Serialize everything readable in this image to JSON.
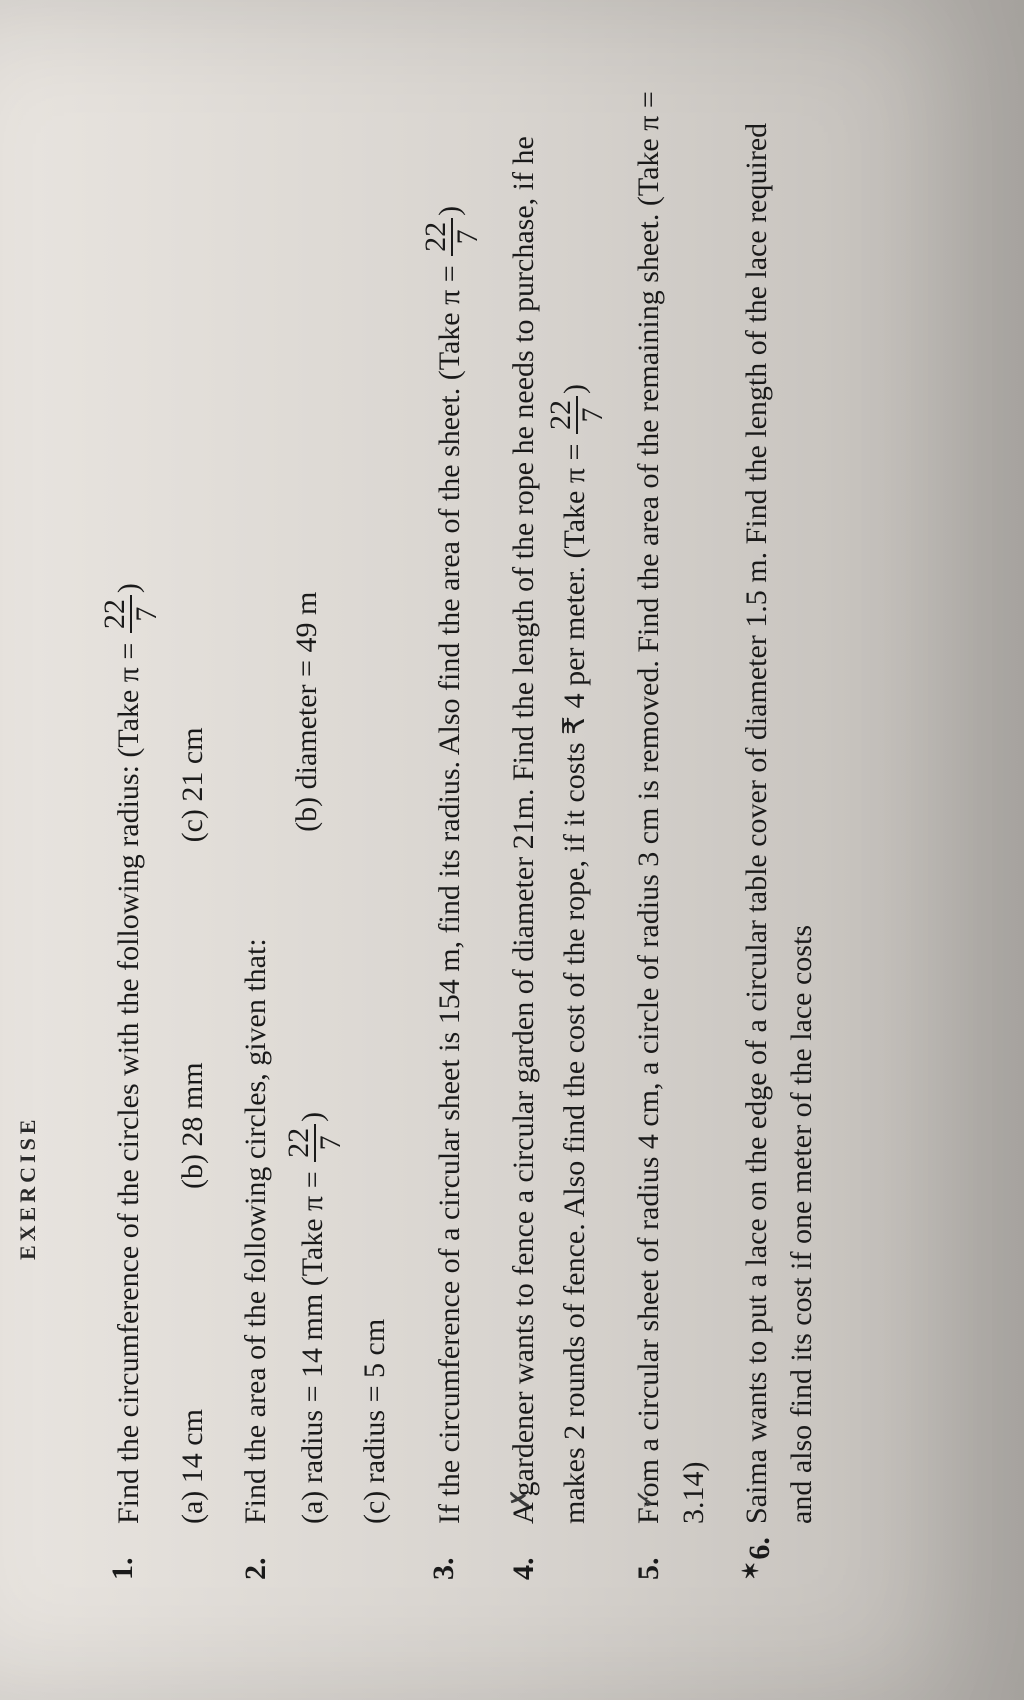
{
  "header": {
    "label": "EXERCISE"
  },
  "pi_fraction": {
    "num": "22",
    "den": "7"
  },
  "questions": [
    {
      "num": "1.",
      "text_before": "Find the circumference of the circles with the following radius: (Take π = ",
      "text_after": ")",
      "has_pi": true,
      "options_inline": [
        {
          "label": "(a)",
          "value": "14 cm"
        },
        {
          "label": "(b)",
          "value": "28 mm"
        },
        {
          "label": "(c)",
          "value": "21 cm"
        }
      ]
    },
    {
      "num": "2.",
      "text": "Find the area of the following circles, given that:",
      "options_two_col": {
        "left": [
          {
            "label": "(a)",
            "value_before": "radius = 14 mm (Take π = ",
            "value_after": ")",
            "has_pi": true
          },
          {
            "label": "(c)",
            "value": "radius = 5 cm"
          }
        ],
        "right": [
          {
            "label": "(b)",
            "value": "diameter = 49 m"
          }
        ]
      }
    },
    {
      "num": "3.",
      "text_before": "If the circumference of a circular sheet is 154 m, find its radius. Also find the area of the sheet. (Take π = ",
      "text_after": ")",
      "has_pi": true
    },
    {
      "num": "4.",
      "check": true,
      "text_before": "A gardener wants to fence a circular garden of diameter 21m. Find the length of the rope he needs to purchase, if he makes 2 rounds of fence. Also find the cost of the rope, if it costs ₹ 4 per meter. (Take π = ",
      "text_after": ")",
      "has_pi": true
    },
    {
      "num": "5.",
      "check": true,
      "text": "From a circular sheet of radius 4 cm, a circle of radius 3 cm is removed. Find the area of the remaining sheet. (Take π = 3.14)"
    },
    {
      "num": "6.",
      "star": true,
      "text": "Saima wants to put a lace on the edge of a circular table cover of diameter 1.5 m. Find the length of the lace required and also find its cost if one meter of the lace costs"
    }
  ]
}
